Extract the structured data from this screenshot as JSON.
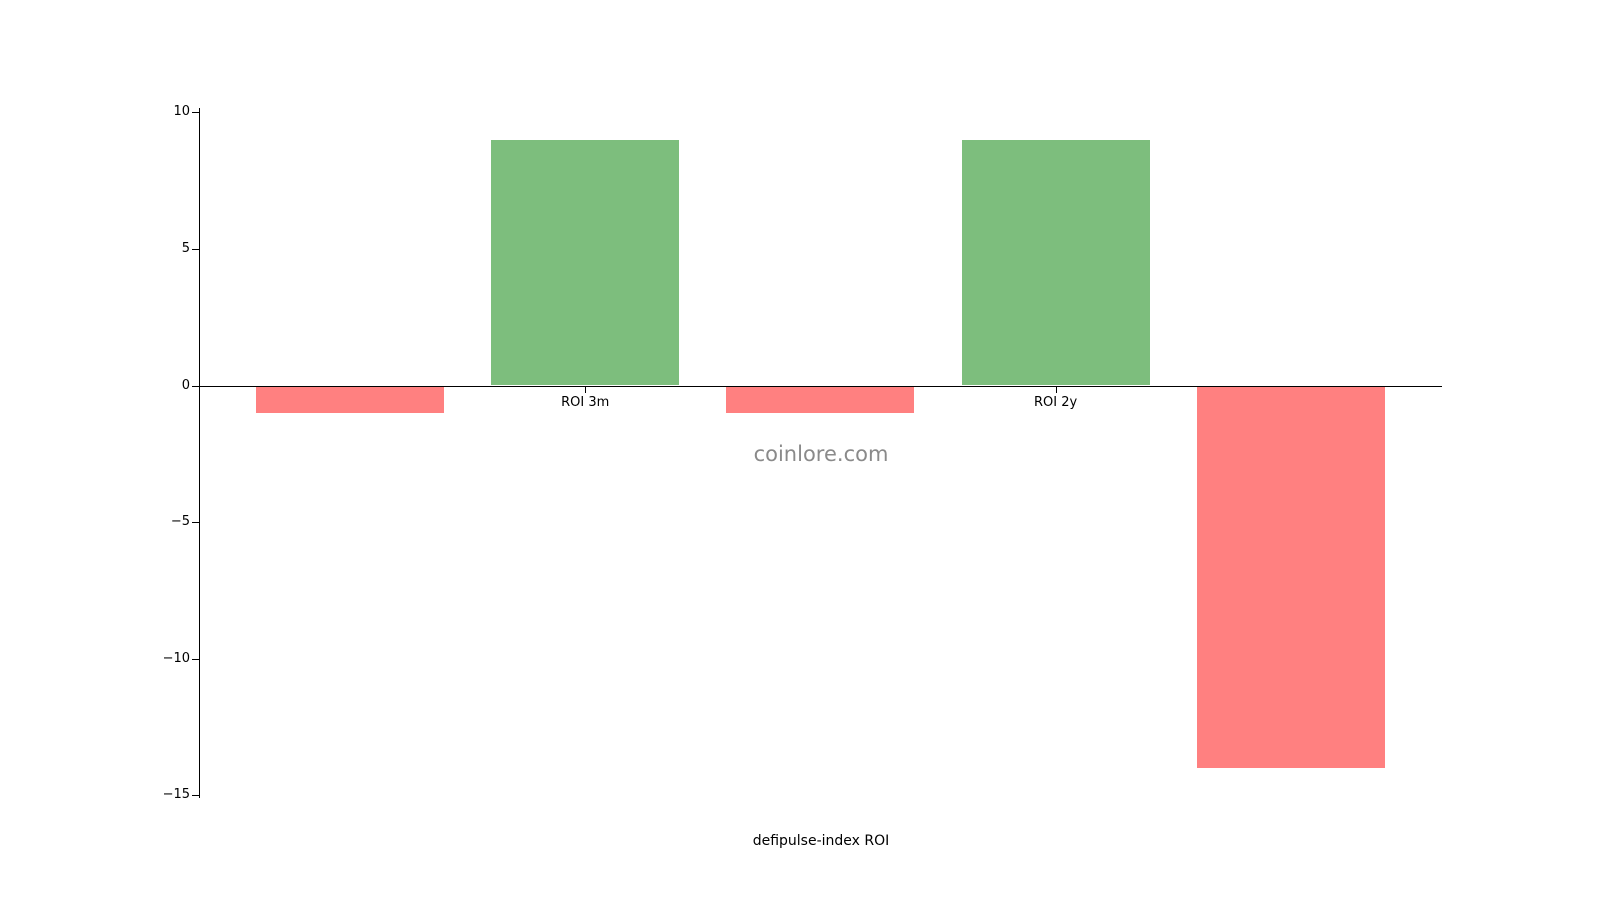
{
  "chart_data": {
    "type": "bar",
    "title": "defipulse-index ROI",
    "watermark": "coinlore.com",
    "categories": [
      "",
      "ROI 3m",
      "",
      "ROI 2y",
      ""
    ],
    "values": [
      -1,
      9,
      -1,
      9,
      -14
    ],
    "series": [
      {
        "name": "ROI",
        "values": [
          -1,
          9,
          -1,
          9,
          -14
        ]
      }
    ],
    "x_tick_labels": [
      {
        "index": 1,
        "label": "ROI 3m"
      },
      {
        "index": 3,
        "label": "ROI 2y"
      }
    ],
    "yticks": [
      10,
      5,
      0,
      -5,
      -10,
      -15
    ],
    "ylim": [
      -15,
      10
    ],
    "grid": false,
    "legend": "none",
    "colors": {
      "positive_bar": "#7dbe7d",
      "negative_bar": "#ff8080",
      "axis": "#000000",
      "tick_text": "#000000",
      "watermark_text": "#8a8a8a",
      "background": "#ffffff"
    }
  }
}
